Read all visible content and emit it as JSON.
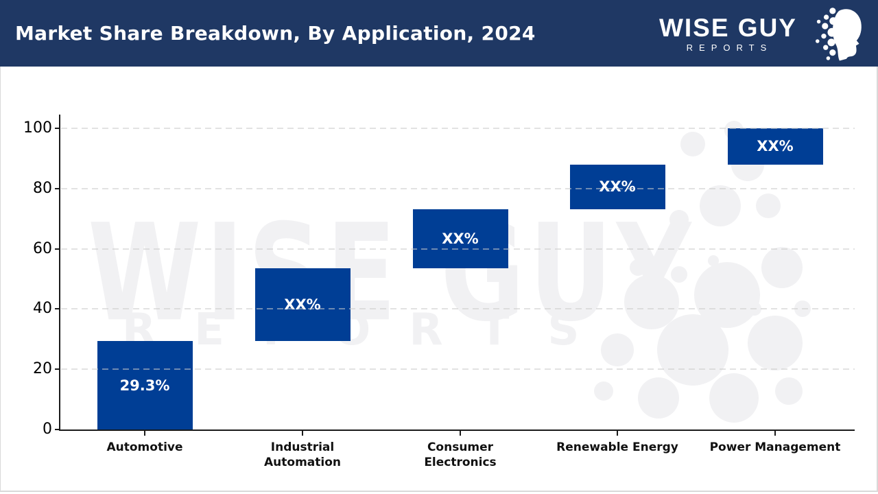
{
  "header": {
    "title": "Market Share Breakdown, By Application, 2024",
    "logo": {
      "line1": "WISE GUY",
      "line2": "REPORTS"
    }
  },
  "watermark": {
    "line1": "WISE GUY",
    "line2": "REPORTS"
  },
  "chart_data": {
    "type": "bar",
    "subtype": "floating-waterfall",
    "title": "Market Share Breakdown, By Application, 2024",
    "categories": [
      "Automotive",
      "Industrial Automation",
      "Consumer Electronics",
      "Renewable Energy",
      "Power Management"
    ],
    "segments": [
      {
        "category": "Automotive",
        "label": "29.3%",
        "start": 0,
        "end": 29.3,
        "lines": [
          "Automotive"
        ]
      },
      {
        "category": "Industrial Automation",
        "label": "XX%",
        "start": 29.3,
        "end": 53.6,
        "lines": [
          "Industrial",
          "Automation"
        ]
      },
      {
        "category": "Consumer Electronics",
        "label": "XX%",
        "start": 53.6,
        "end": 73.2,
        "lines": [
          "Consumer",
          "Electronics"
        ]
      },
      {
        "category": "Renewable Energy",
        "label": "XX%",
        "start": 73.2,
        "end": 88.0,
        "lines": [
          "Renewable Energy"
        ]
      },
      {
        "category": "Power Management",
        "label": "XX%",
        "start": 88.0,
        "end": 100.0,
        "lines": [
          "Power Management"
        ]
      }
    ],
    "yticks": [
      0,
      20,
      40,
      60,
      80,
      100
    ],
    "ylim": [
      0,
      105
    ],
    "xlabel": "",
    "ylabel": "",
    "grid": {
      "horizontal": true,
      "style": "dashed"
    },
    "legend": null,
    "colors": {
      "bar": "#003e95",
      "bar_label": "#ffffff",
      "axis": "#1a1a1a",
      "gridline": "#cacaca",
      "header_bg": "#1f3864",
      "watermark": "#f1f1f3"
    }
  }
}
